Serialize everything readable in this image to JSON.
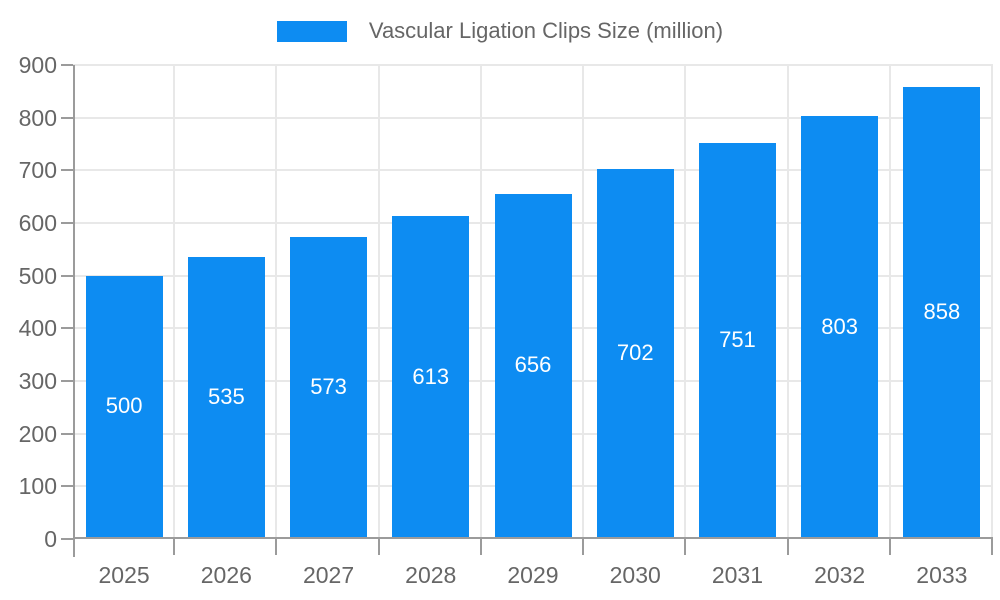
{
  "chart_data": {
    "type": "bar",
    "legend": {
      "label": "Vascular Ligation Clips Size (million)",
      "position": "top-center"
    },
    "categories": [
      "2025",
      "2026",
      "2027",
      "2028",
      "2029",
      "2030",
      "2031",
      "2032",
      "2033"
    ],
    "values": [
      500,
      535,
      573,
      613,
      656,
      702,
      751,
      803,
      858
    ],
    "value_labels_inside_bars": true,
    "ylim": [
      0,
      900
    ],
    "ytick_step": 100,
    "grid": "on",
    "colors": {
      "bar": "#0D8CF2",
      "value_label": "#FFFFFF",
      "axis": "#9B9B9B",
      "grid": "#E8E8E8",
      "text": "#666666",
      "background": "#FFFFFF"
    }
  }
}
